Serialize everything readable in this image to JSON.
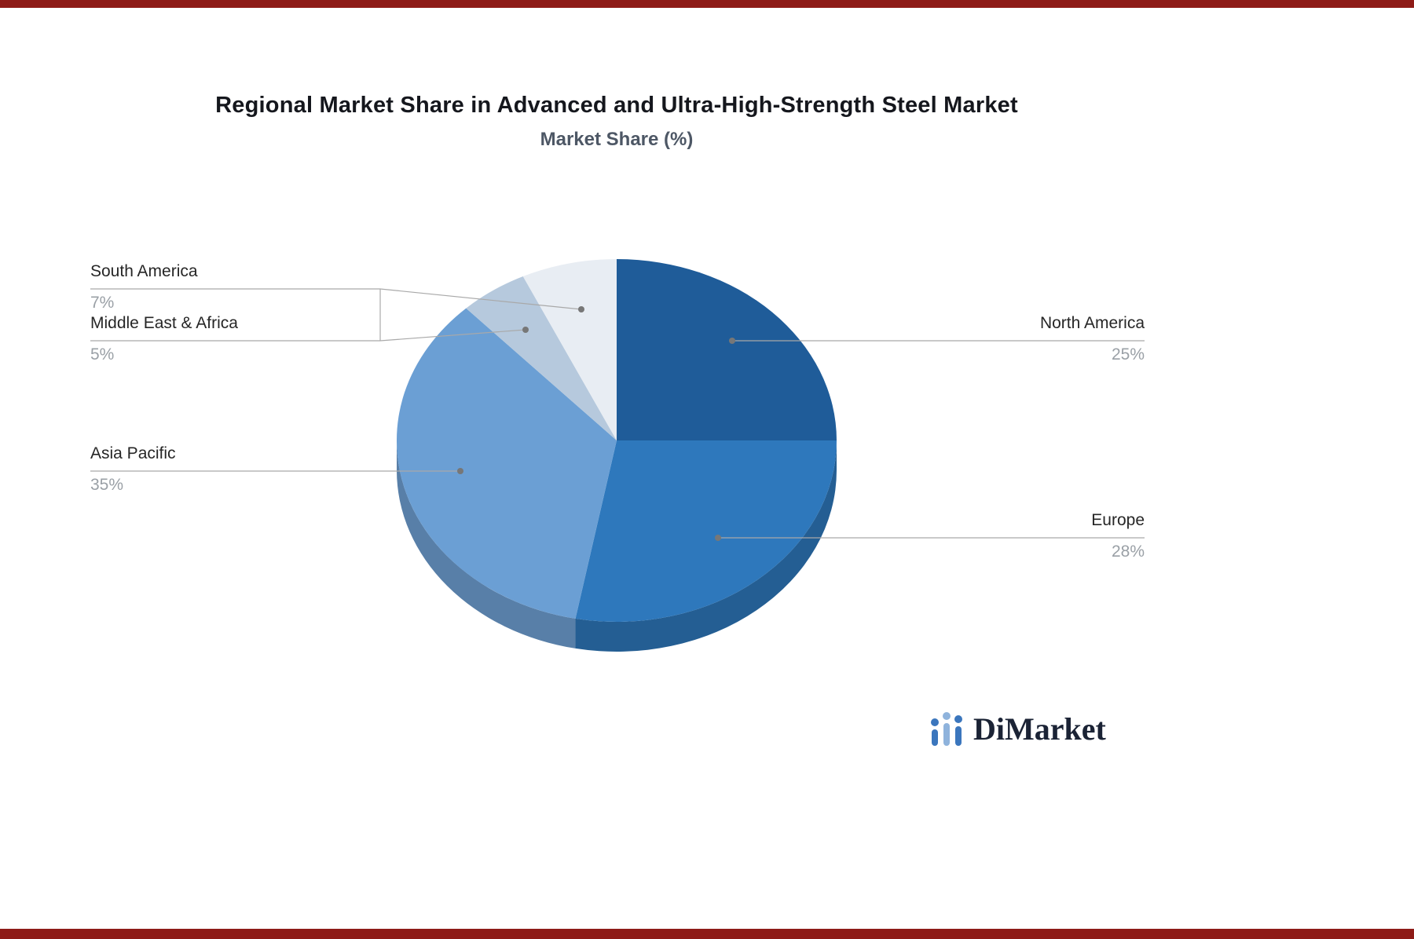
{
  "page": {
    "accent_bar_color": "#8e1b17",
    "background": "#ffffff"
  },
  "brand": {
    "name": "DiMarket",
    "icon": "bar-chart-dots-icon",
    "color": "#3b76bd",
    "color_light": "#8fb3dc",
    "text_color": "#1b2335"
  },
  "chart_data": {
    "type": "pie",
    "title": "Regional Market Share in Advanced and Ultra-High-Strength Steel Market",
    "subtitle": "Market Share (%)",
    "unit": "%",
    "direction": "clockwise",
    "start_angle": "12 o'clock",
    "effect": "3d",
    "legend_position": "callout-labels",
    "slices": [
      {
        "label": "North America",
        "value": 25,
        "display": "25%",
        "color": "#1f5c99",
        "side_color": "#17466f"
      },
      {
        "label": "Europe",
        "value": 28,
        "display": "28%",
        "color": "#2e78bc",
        "side_color": "#245e93"
      },
      {
        "label": "Asia Pacific",
        "value": 35,
        "display": "35%",
        "color": "#6b9fd4",
        "side_color": "#587fa8"
      },
      {
        "label": "Middle East & Africa",
        "value": 5,
        "display": "5%",
        "color": "#b6c9dd",
        "side_color": "#93a9c0"
      },
      {
        "label": "South America",
        "value": 7,
        "display": "7%",
        "color": "#e8edf3",
        "side_color": "#c2c9d4"
      }
    ],
    "label_name_color": "#262626",
    "label_value_color": "#9aa0a6",
    "leader_line_color": "#a9a9a9"
  }
}
